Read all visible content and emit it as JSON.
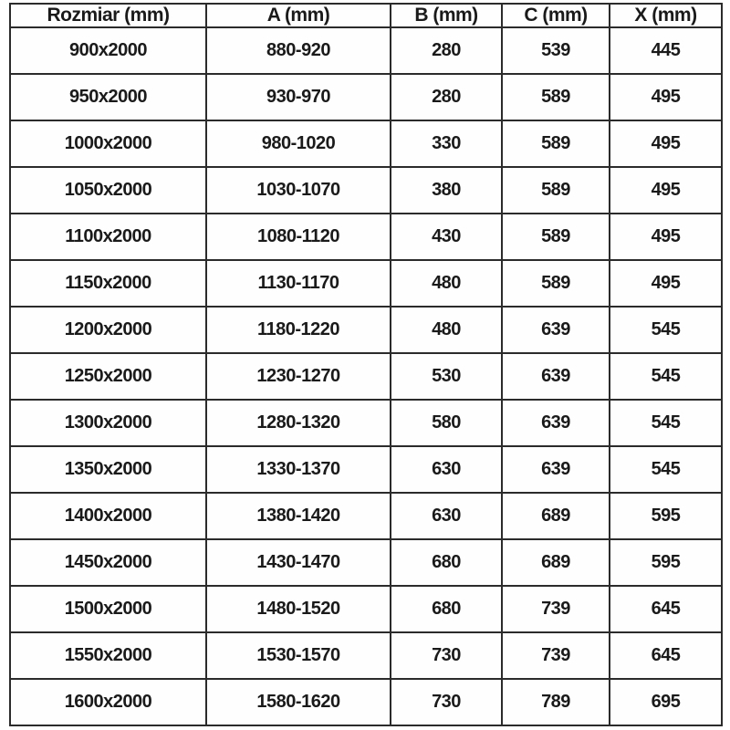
{
  "table": {
    "headers": [
      "Rozmiar (mm)",
      "A (mm)",
      "B (mm)",
      "C (mm)",
      "X (mm)"
    ],
    "rows": [
      [
        "900x2000",
        "880-920",
        "280",
        "539",
        "445"
      ],
      [
        "950x2000",
        "930-970",
        "280",
        "589",
        "495"
      ],
      [
        "1000x2000",
        "980-1020",
        "330",
        "589",
        "495"
      ],
      [
        "1050x2000",
        "1030-1070",
        "380",
        "589",
        "495"
      ],
      [
        "1100x2000",
        "1080-1120",
        "430",
        "589",
        "495"
      ],
      [
        "1150x2000",
        "1130-1170",
        "480",
        "589",
        "495"
      ],
      [
        "1200x2000",
        "1180-1220",
        "480",
        "639",
        "545"
      ],
      [
        "1250x2000",
        "1230-1270",
        "530",
        "639",
        "545"
      ],
      [
        "1300x2000",
        "1280-1320",
        "580",
        "639",
        "545"
      ],
      [
        "1350x2000",
        "1330-1370",
        "630",
        "639",
        "545"
      ],
      [
        "1400x2000",
        "1380-1420",
        "630",
        "689",
        "595"
      ],
      [
        "1450x2000",
        "1430-1470",
        "680",
        "689",
        "595"
      ],
      [
        "1500x2000",
        "1480-1520",
        "680",
        "739",
        "645"
      ],
      [
        "1550x2000",
        "1530-1570",
        "730",
        "739",
        "645"
      ],
      [
        "1600x2000",
        "1580-1620",
        "730",
        "789",
        "695"
      ]
    ]
  },
  "colors": {
    "border": "#2b2b2b",
    "text": "#1a1a1a",
    "background": "#ffffff"
  }
}
